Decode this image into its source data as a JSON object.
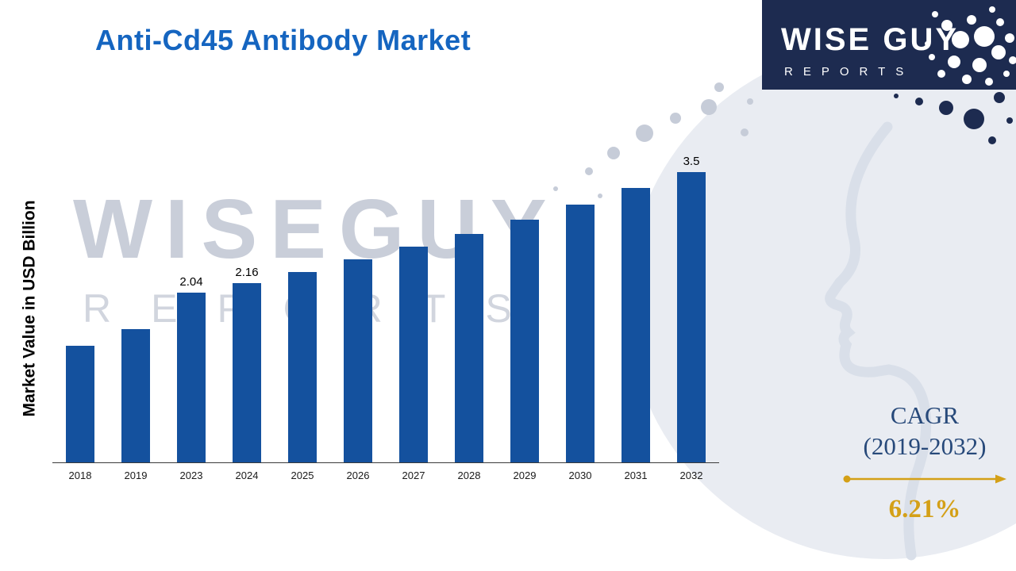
{
  "title": "Anti-Cd45 Antibody Market",
  "ylabel": "Market Value in USD Billion",
  "logo": {
    "name": "WISE GUY",
    "sub": "REPORTS"
  },
  "watermark": {
    "line1": "WISEGUY",
    "line2": "REPORTS"
  },
  "cagr": {
    "label": "CAGR",
    "range": "(2019-2032)",
    "value": "6.21%"
  },
  "colors": {
    "bar": "#14519e",
    "title": "#1565c0",
    "navy": "#1d2b50",
    "gold": "#d4a017",
    "cagr_text": "#27497a",
    "watermark": "#c9ced9",
    "circle": "#e9ecf2"
  },
  "chart_data": {
    "type": "bar",
    "title": "Anti-Cd45 Antibody Market",
    "xlabel": "",
    "ylabel": "Market Value in USD Billion",
    "categories": [
      "2018",
      "2019",
      "2023",
      "2024",
      "2025",
      "2026",
      "2027",
      "2028",
      "2029",
      "2030",
      "2031",
      "2032"
    ],
    "values": [
      1.4,
      1.6,
      2.04,
      2.16,
      2.29,
      2.44,
      2.59,
      2.75,
      2.92,
      3.1,
      3.3,
      3.5
    ],
    "labels": [
      "",
      "",
      "2.04",
      "2.16",
      "",
      "",
      "",
      "",
      "",
      "",
      "",
      "3.5"
    ],
    "ylim": [
      0,
      3.7
    ],
    "grid": false,
    "legend": false,
    "bar_color": "#14519e",
    "cagr_pct": "6.21%",
    "cagr_range": "(2019-2032)"
  }
}
